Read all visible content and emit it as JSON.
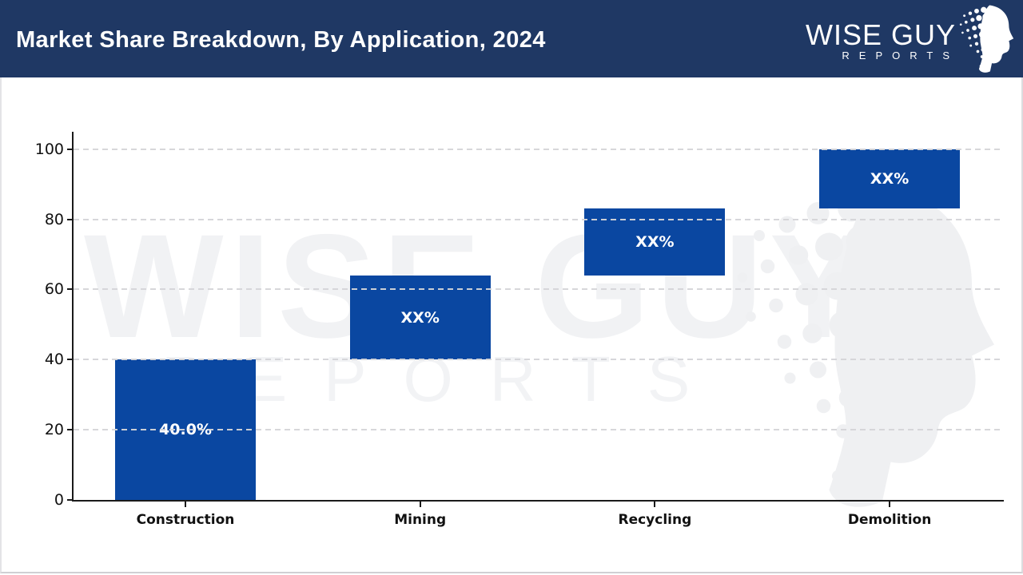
{
  "header": {
    "title": "Market Share Breakdown, By Application, 2024",
    "background_color": "#1f3864",
    "logo": {
      "line1": "WISE GUY",
      "line2": "REPORTS"
    }
  },
  "watermark": {
    "line1": "WISE GUY",
    "line2": "REPORTS"
  },
  "chart_data": {
    "type": "bar",
    "subtype": "waterfall",
    "title": "Market Share Breakdown, By Application, 2024",
    "categories": [
      "Construction",
      "Mining",
      "Recycling",
      "Demolition"
    ],
    "segments": [
      {
        "category": "Construction",
        "start": 0,
        "end": 40,
        "value": 40,
        "label": "40.0%"
      },
      {
        "category": "Mining",
        "start": 40,
        "end": 64,
        "value": 24,
        "label": "XX%"
      },
      {
        "category": "Recycling",
        "start": 64,
        "end": 83,
        "value": 19,
        "label": "XX%"
      },
      {
        "category": "Demolition",
        "start": 83,
        "end": 100,
        "value": 17,
        "label": "XX%"
      }
    ],
    "xlabel": "",
    "ylabel": "",
    "ylim": [
      0,
      100
    ],
    "yticks": [
      0,
      20,
      40,
      60,
      80,
      100
    ],
    "grid": "horizontal-dashed",
    "grid_on_top_of_bars": true,
    "legend": "none",
    "colors": {
      "bar": "#0a47a1",
      "bar_label": "#ffffff",
      "axis": "#1a1a1a",
      "gridline": "#d5d5d8",
      "tick_label": "#111111"
    }
  }
}
